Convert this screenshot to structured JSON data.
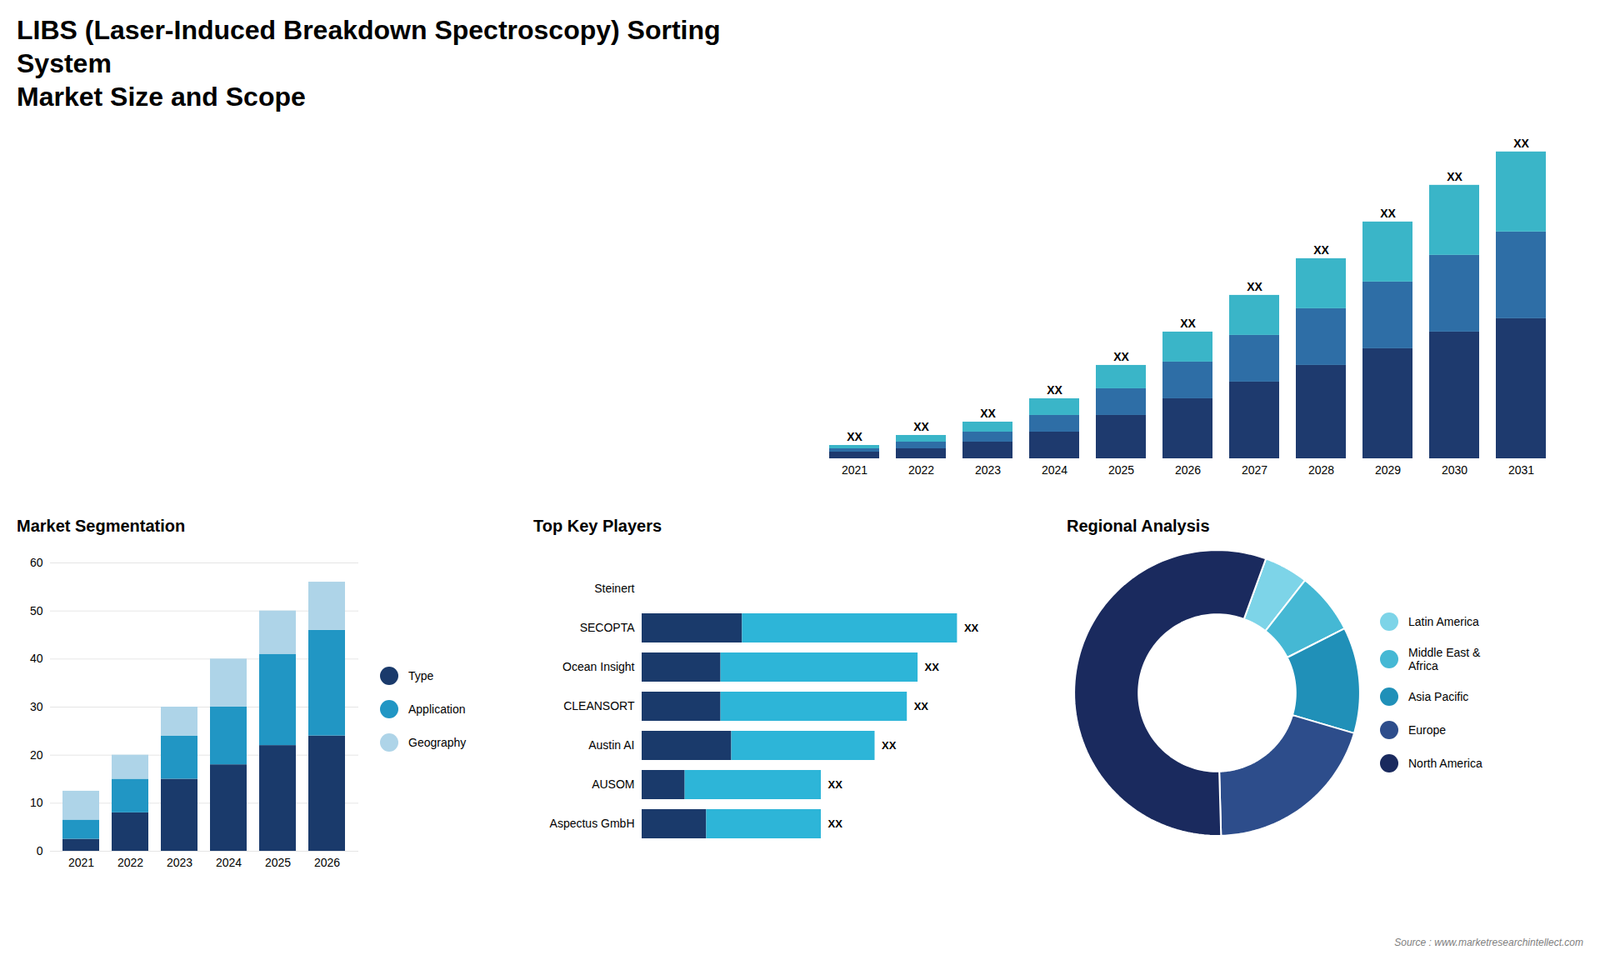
{
  "chart_data": [
    {
      "type": "bar",
      "title": "LIBS (Laser-Induced Breakdown Spectroscopy) Sorting System",
      "subtitle": "Market Size and Scope",
      "annotations": [
        "Source : www.marketresearchintellect.com"
      ],
      "categories": [
        "2021",
        "2022",
        "2023",
        "2024",
        "2025",
        "2026",
        "2027",
        "2028",
        "2029",
        "2030",
        "2031"
      ],
      "series": [
        {
          "color": "#1e3a6e",
          "values": [
            2,
            3,
            5,
            8,
            13,
            18,
            23,
            28,
            33,
            38,
            42
          ]
        },
        {
          "color": "#2e6ea6",
          "values": [
            1,
            2,
            3,
            5,
            8,
            11,
            14,
            17,
            20,
            23,
            26
          ]
        },
        {
          "color": "#3ab5c8",
          "values": [
            1,
            2,
            3,
            5,
            7,
            9,
            12,
            15,
            18,
            21,
            24
          ]
        }
      ],
      "stacked": true,
      "ylim": [
        0,
        121.44
      ],
      "tick_labels": "x",
      "value_labels": [
        "XX",
        "XX",
        "XX",
        "XX",
        "XX",
        "XX",
        "XX",
        "XX",
        "XX",
        "XX",
        "XX"
      ]
    },
    {
      "type": "bar",
      "title": "Market Segmentation",
      "categories": [
        "2021",
        "2022",
        "2023",
        "2024",
        "2025",
        "2026"
      ],
      "series": [
        {
          "name": "Type",
          "color": "#1a3a6b",
          "values": [
            2.5,
            8,
            15,
            18,
            22,
            24
          ]
        },
        {
          "name": "Application",
          "color": "#2196c4",
          "values": [
            4,
            7,
            9,
            12,
            19,
            22
          ]
        },
        {
          "name": "Geography",
          "color": "#aed4e8",
          "values": [
            6,
            5,
            6,
            10,
            9,
            10
          ]
        }
      ],
      "stacked": true,
      "ylim": [
        0,
        60
      ],
      "yticks": [
        0,
        10,
        20,
        30,
        40,
        50,
        60
      ],
      "grid": true,
      "legend": "right"
    },
    {
      "type": "bar",
      "title": "Top Key Players",
      "orientation": "horizontal",
      "stacked": true,
      "categories": [
        "Steinert",
        "SECOPTA",
        "Ocean Insight",
        "CLEANSORT",
        "Austin AI",
        "AUSOM",
        "Aspectus GmbH"
      ],
      "series": [
        {
          "color": "#1a3a6b",
          "values": [
            0,
            0.28,
            0.22,
            0.22,
            0.25,
            0.12,
            0.18
          ]
        },
        {
          "color": "#2db5d8",
          "values": [
            0,
            0.6,
            0.55,
            0.52,
            0.4,
            0.38,
            0.32
          ]
        }
      ],
      "xlim": [
        0,
        1
      ],
      "tick_labels": "y",
      "value_labels": [
        null,
        "XX",
        "XX",
        "XX",
        "XX",
        "XX",
        "XX"
      ]
    },
    {
      "type": "pie",
      "title": "Regional Analysis",
      "categories": [
        "Latin America",
        "Middle East &\nAfrica",
        "Asia Pacific",
        "Europe",
        "North America"
      ],
      "values": [
        5,
        7,
        12,
        20,
        56
      ],
      "colors": [
        "#7dd4e8",
        "#45b8d4",
        "#2090b8",
        "#2d4d8b",
        "#1a2a5e"
      ],
      "legend": "right"
    }
  ]
}
